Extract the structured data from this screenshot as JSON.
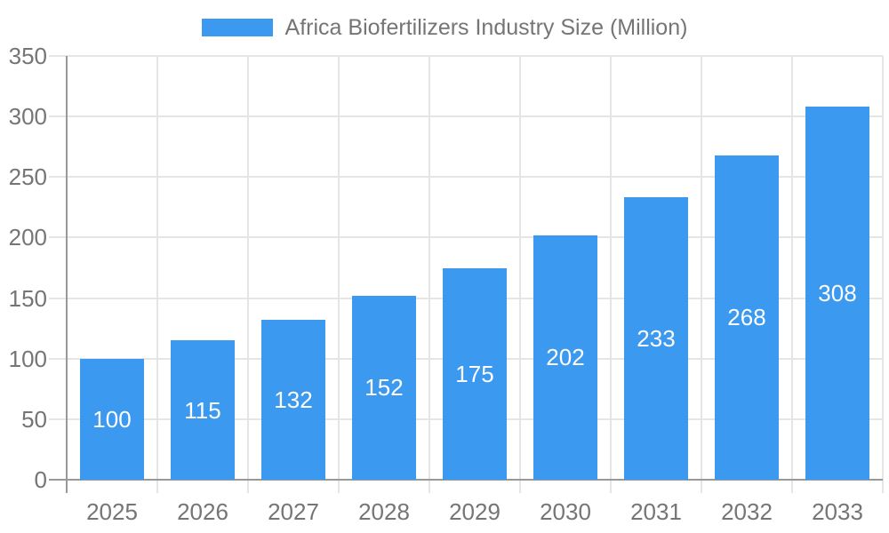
{
  "chart_data": {
    "type": "bar",
    "title": "Africa Biofertilizers Industry Size (Million)",
    "categories": [
      "2025",
      "2026",
      "2027",
      "2028",
      "2029",
      "2030",
      "2031",
      "2032",
      "2033"
    ],
    "values": [
      100,
      115,
      132,
      152,
      175,
      202,
      233,
      268,
      308
    ],
    "xlabel": "",
    "ylabel": "",
    "ylim": [
      0,
      350
    ],
    "yticks": [
      0,
      50,
      100,
      150,
      200,
      250,
      300,
      350
    ],
    "grid": true,
    "legend_position": "top",
    "bar_labels_inside": true,
    "colors": {
      "bar": "#3B99F0",
      "grid": "#E5E5E5",
      "axis": "#999999",
      "tick_label": "#757575",
      "bar_label": "#FFFFFF",
      "background": "#FFFFFF"
    }
  }
}
